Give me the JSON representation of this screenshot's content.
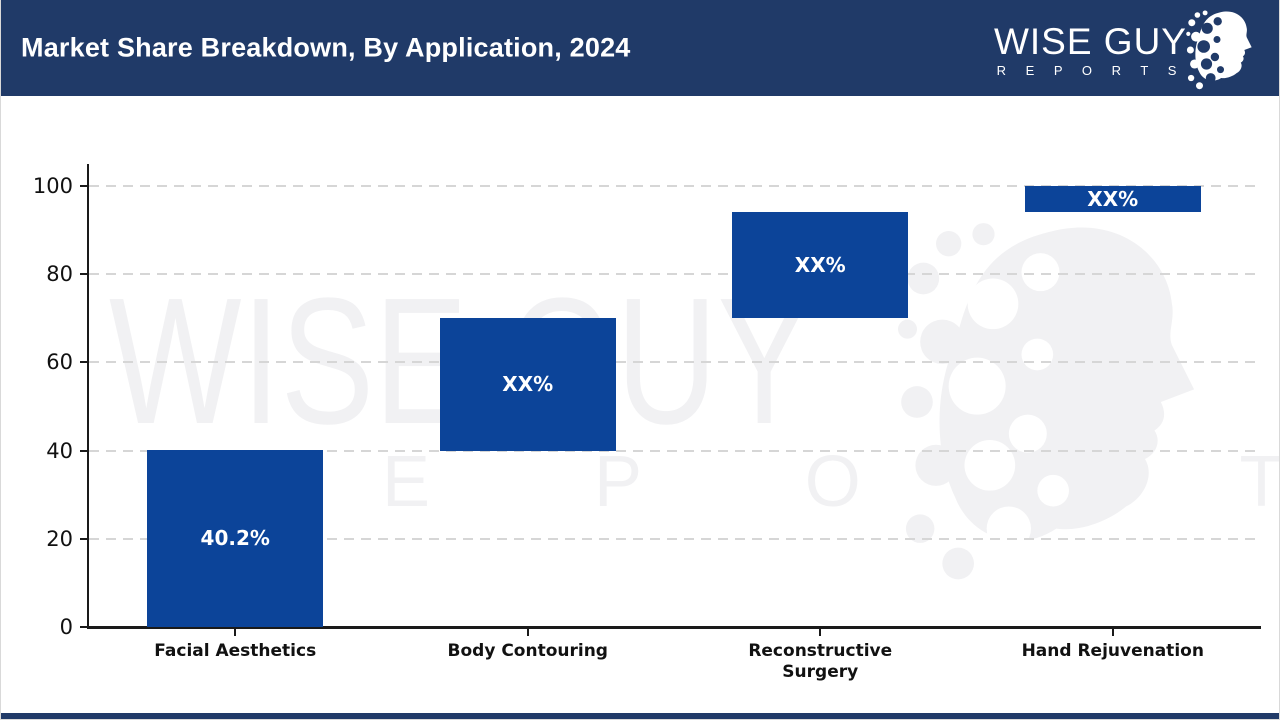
{
  "header": {
    "title": "Market Share Breakdown, By Application, 2024",
    "logo": {
      "word": "WISE GUY",
      "reports": "R E P O R T S",
      "face_icon": "dotted-head-profile"
    }
  },
  "watermark": {
    "word": "WISE GUY",
    "reports": "R E P O R T S",
    "face_icon": "dotted-head-profile"
  },
  "colors": {
    "header_bg": "#203a68",
    "footer_bg": "#203a68",
    "bar": "#0c4499",
    "bar_label": "#ffffff",
    "axis": "#1a1a1a",
    "gridline": "#d6d6d6",
    "tick_label": "#111111",
    "watermark": "#f1f1f3",
    "background": "#ffffff"
  },
  "chart_data": {
    "type": "bar",
    "subtype": "waterfall-stacked-share",
    "title": "Market Share Breakdown, By Application, 2024",
    "categories": [
      "Facial Aesthetics",
      "Body Contouring",
      "Reconstructive Surgery",
      "Hand Rejuvenation"
    ],
    "bars": [
      {
        "category": "Facial Aesthetics",
        "start": 0,
        "end": 40.2,
        "label": "40.2%"
      },
      {
        "category": "Body Contouring",
        "start": 40,
        "end": 70,
        "label": "XX%"
      },
      {
        "category": "Reconstructive Surgery",
        "start": 70,
        "end": 94,
        "label": "XX%"
      },
      {
        "category": "Hand Rejuvenation",
        "start": 94,
        "end": 100,
        "label": "XX%"
      }
    ],
    "yticks": [
      0,
      20,
      40,
      60,
      80,
      100
    ],
    "ylim": [
      0,
      100
    ],
    "xlabel": "",
    "ylabel": "",
    "grid": "horizontal-dashed",
    "legend": "none"
  }
}
